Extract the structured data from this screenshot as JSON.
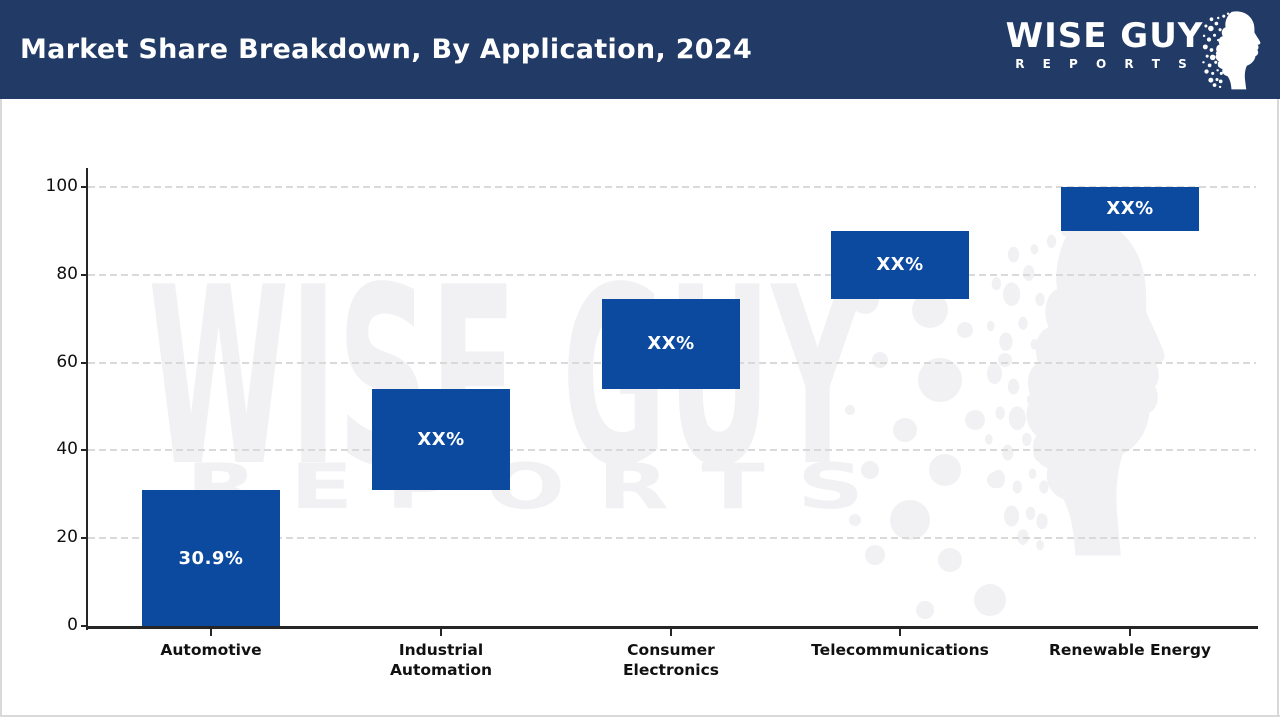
{
  "header": {
    "title": "Market Share Breakdown, By Application, 2024",
    "logo": {
      "name": "WISE GUY",
      "tagline": "R E P O R T S"
    }
  },
  "watermark": {
    "line1": "WISE GUY",
    "line2": "R E P O R T S"
  },
  "chart_data": {
    "type": "bar",
    "subtype": "waterfall",
    "title": "Market Share Breakdown, By Application, 2024",
    "categories": [
      "Automotive",
      "Industrial\nAutomation",
      "Consumer\nElectronics",
      "Telecommunications",
      "Renewable Energy"
    ],
    "segments": [
      {
        "category": "Automotive",
        "start": 0,
        "end": 30.9,
        "label": "30.9%"
      },
      {
        "category": "Industrial Automation",
        "start": 30.9,
        "end": 54,
        "label": "XX%"
      },
      {
        "category": "Consumer Electronics",
        "start": 54,
        "end": 74.5,
        "label": "XX%"
      },
      {
        "category": "Telecommunications",
        "start": 74.5,
        "end": 90,
        "label": "XX%"
      },
      {
        "category": "Renewable Energy",
        "start": 90,
        "end": 100,
        "label": "XX%"
      }
    ],
    "y_ticks": [
      0,
      20,
      40,
      60,
      80,
      100
    ],
    "ylim": [
      0,
      100
    ],
    "xlabel": "",
    "ylabel": "",
    "grid": "horizontal-dashed",
    "legend": "none",
    "colors": {
      "bar": "#0b4a9f",
      "header_bg": "#213a66",
      "grid": "#d9d9d9",
      "axis": "#262626",
      "value_label": "#ffffff",
      "watermark": "#f1f1f4"
    }
  }
}
